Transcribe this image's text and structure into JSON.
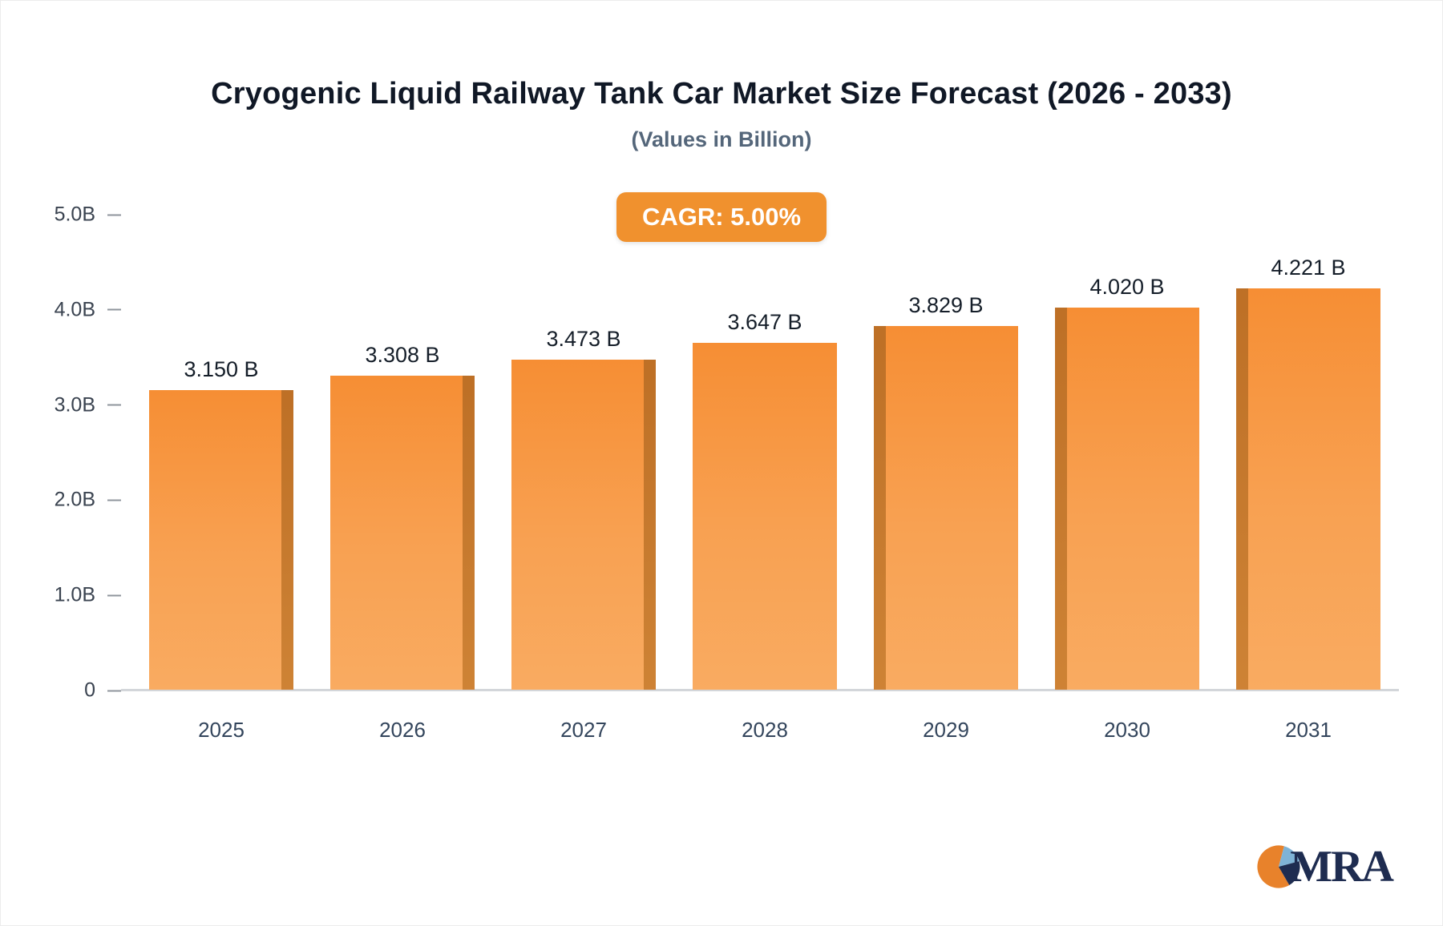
{
  "header": {
    "title": "Cryogenic Liquid Railway Tank Car Market Size Forecast (2026 - 2033)",
    "subtitle": "(Values in Billion)"
  },
  "badge": {
    "label": "CAGR: 5.00%",
    "bg_color": "#F0912E"
  },
  "chart_data": {
    "type": "bar",
    "title": "Cryogenic Liquid Railway Tank Car Market Size Forecast (2026 - 2033)",
    "subtitle": "(Values in Billion)",
    "categories": [
      "2025",
      "2026",
      "2027",
      "2028",
      "2029",
      "2030",
      "2031"
    ],
    "values": [
      3.15,
      3.308,
      3.473,
      3.647,
      3.829,
      4.02,
      4.221
    ],
    "labels": [
      "3.150 B",
      "3.308 B",
      "3.473 B",
      "3.647 B",
      "3.829 B",
      "4.020 B",
      "4.221 B"
    ],
    "xlabel": "",
    "ylabel": "",
    "ylim": [
      0,
      5
    ],
    "yticks": [
      {
        "v": 5,
        "label": "5.0B"
      },
      {
        "v": 4,
        "label": "4.0B"
      },
      {
        "v": 3,
        "label": "3.0B"
      },
      {
        "v": 2,
        "label": "2.0B"
      },
      {
        "v": 1,
        "label": "1.0B"
      },
      {
        "v": 0,
        "label": "0"
      }
    ],
    "grid": false,
    "legend": "none",
    "bar_color_top": "#F68E34",
    "bar_color_bottom": "#F9AB61",
    "bar_side_color": "#C0722A",
    "sides": [
      "right",
      "right",
      "right",
      "none",
      "left",
      "left",
      "left"
    ]
  },
  "logo": {
    "text": "MRA",
    "pie_orange": "#E8822B",
    "pie_lightblue": "#7FB3D5",
    "pie_navy": "#1E2C50"
  }
}
